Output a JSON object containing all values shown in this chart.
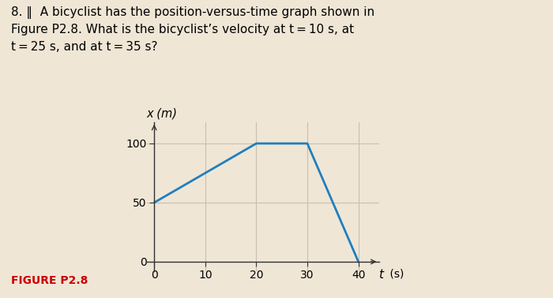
{
  "xlabel_italic": "t",
  "xlabel_unit": " (s)",
  "ylabel": "x (m)",
  "x_data": [
    0,
    20,
    30,
    40
  ],
  "y_data": [
    50,
    100,
    100,
    0
  ],
  "line_color": "#1f7fbe",
  "line_width": 2.0,
  "xticks": [
    0,
    10,
    20,
    30,
    40
  ],
  "yticks": [
    0,
    50,
    100
  ],
  "xlim": [
    -1.5,
    44
  ],
  "ylim": [
    -8,
    118
  ],
  "grid_color": "#c8bfb0",
  "background_color": "#f0e6d6",
  "figure_label": "FIGURE P2.8",
  "figure_label_color": "#cc0000",
  "caption_line1": "8. ‖  A bicyclist has the position-versus-time graph shown in",
  "caption_line2": "Figure P2.8. What is the bicyclist’s velocity at t = 10 s, at",
  "caption_line3": "t = 25 s, and at t = 35 s?"
}
